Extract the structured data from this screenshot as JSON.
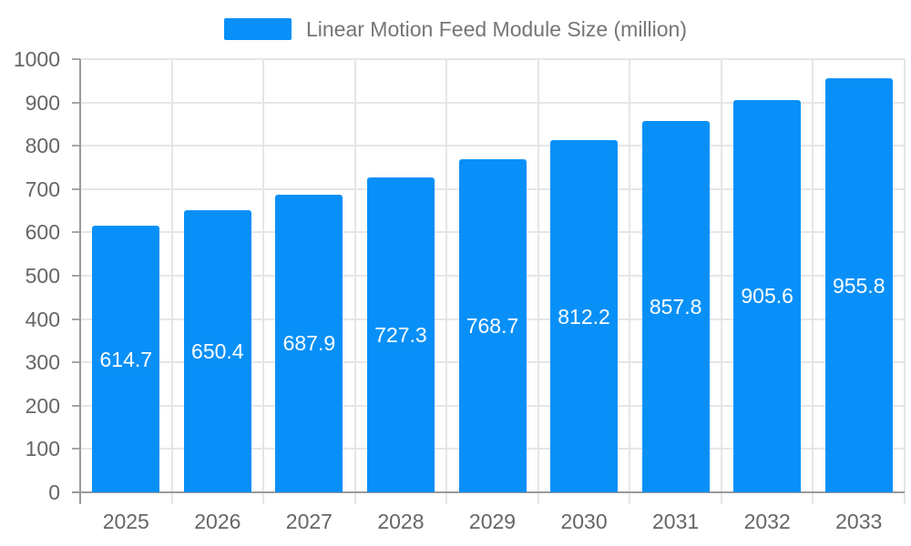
{
  "legend": {
    "label": "Linear Motion Feed Module Size (million)",
    "swatch_color": "#0890f8"
  },
  "chart_data": {
    "type": "bar",
    "title": "Linear Motion Feed Module Size (million)",
    "categories": [
      "2025",
      "2026",
      "2027",
      "2028",
      "2029",
      "2030",
      "2031",
      "2032",
      "2033"
    ],
    "values": [
      614.7,
      650.4,
      687.9,
      727.3,
      768.7,
      812.2,
      857.8,
      905.6,
      955.8
    ],
    "xlabel": "",
    "ylabel": "",
    "ylim": [
      0,
      1000
    ],
    "yticks": [
      0,
      100,
      200,
      300,
      400,
      500,
      600,
      700,
      800,
      900,
      1000
    ],
    "grid": true,
    "legend_position": "top",
    "value_labels": "inside-center",
    "colors": {
      "bar": "#0890f8",
      "value_label": "#ffffff",
      "axis_text": "#666666",
      "legend_text": "#757575",
      "gridline": "#e6e6e6",
      "axis_line": "#9a9a9a"
    }
  }
}
